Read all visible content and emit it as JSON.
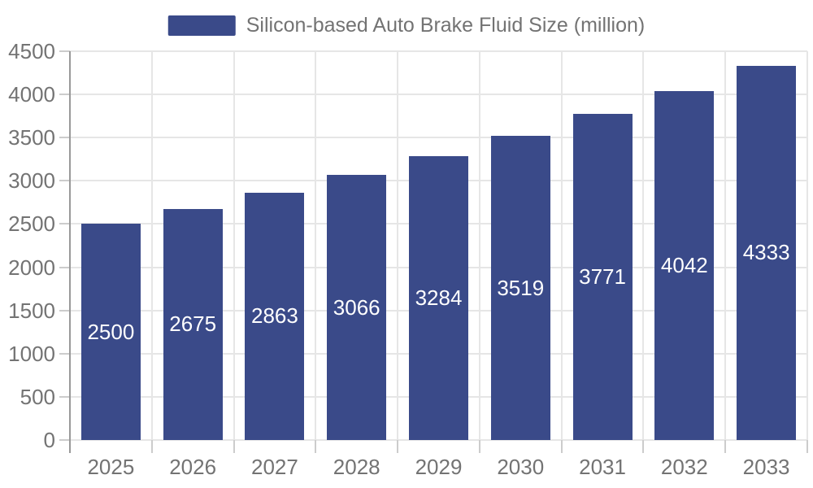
{
  "legend": {
    "label": "Silicon-based Auto Brake Fluid Size (million)"
  },
  "chart_data": {
    "type": "bar",
    "title": "",
    "series_name": "Silicon-based Auto Brake Fluid Size (million)",
    "categories": [
      "2025",
      "2026",
      "2027",
      "2028",
      "2029",
      "2030",
      "2031",
      "2032",
      "2033"
    ],
    "values": [
      2500,
      2675,
      2863,
      3066,
      3284,
      3519,
      3771,
      4042,
      4333
    ],
    "xlabel": "",
    "ylabel": "",
    "ylim": [
      0,
      4500
    ],
    "ytick_step": 500,
    "ytick_labels": [
      "0",
      "500",
      "1000",
      "1500",
      "2000",
      "2500",
      "3000",
      "3500",
      "4000",
      "4500"
    ],
    "grid": true,
    "bar_labels_visible": true,
    "legend_position": "top"
  },
  "colors": {
    "bar": "#3A4A89",
    "bar_label": "#ffffff",
    "axis_line": "#999999",
    "grid_line": "#e6e6e6",
    "tick": "#cccccc",
    "text": "#737373",
    "background": "#ffffff"
  }
}
